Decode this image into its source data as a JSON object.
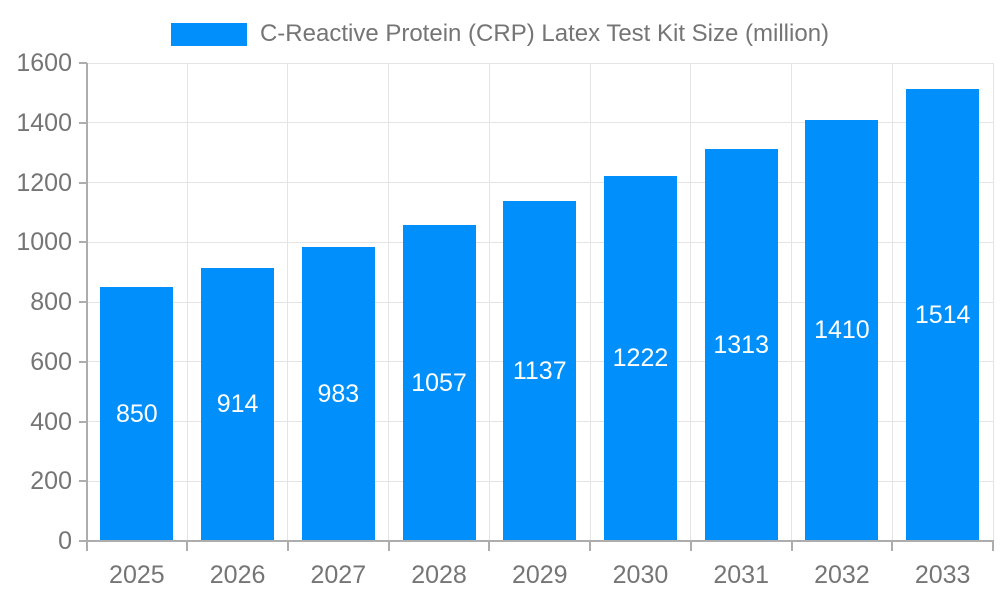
{
  "legend": {
    "label": "C-Reactive Protein (CRP) Latex Test Kit Size (million)"
  },
  "colors": {
    "bar": "#008FFB",
    "label_text": "#757575",
    "grid": "#e4e4e4",
    "axis": "#adadad",
    "value_label": "#ffffff",
    "background": "#ffffff"
  },
  "chart_data": {
    "type": "bar",
    "title": "C-Reactive Protein (CRP) Latex Test Kit Size (million)",
    "categories": [
      "2025",
      "2026",
      "2027",
      "2028",
      "2029",
      "2030",
      "2031",
      "2032",
      "2033"
    ],
    "values": [
      850,
      914,
      983,
      1057,
      1137,
      1222,
      1313,
      1410,
      1514
    ],
    "xlabel": "",
    "ylabel": "",
    "ylim": [
      0,
      1600
    ],
    "ytick_step": 200,
    "grid": true,
    "legend_position": "top",
    "value_label_position": "inside-center"
  }
}
